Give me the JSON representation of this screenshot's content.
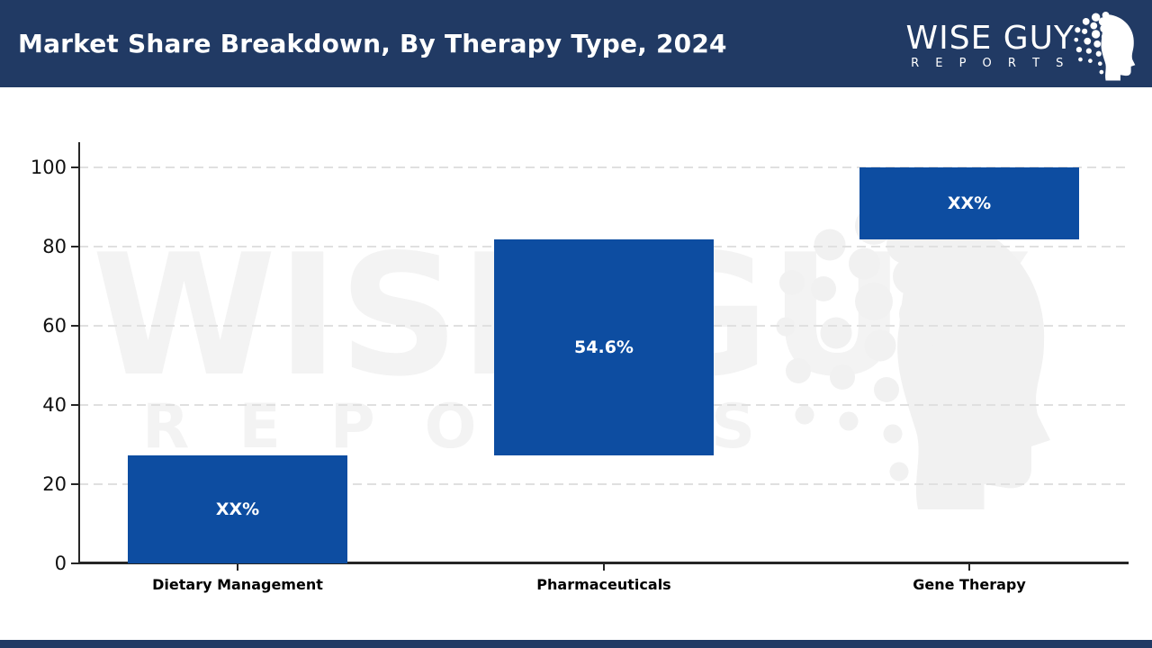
{
  "header": {
    "title": "Market Share Breakdown, By Therapy Type, 2024",
    "logo": {
      "wordmark": "WISE GUY",
      "subtext": "R E P O R T S",
      "icon": "dotted-head-profile-icon"
    }
  },
  "watermark": {
    "wordmark": "WISE GUY",
    "subtext": "REPORTS"
  },
  "chart_data": {
    "type": "bar",
    "subtype": "floating-segment bars (waterfall-style share split, segments sum to 100%)",
    "title": "Market Share Breakdown, By Therapy Type, 2024",
    "categories": [
      "Dietary Management",
      "Pharmaceuticals",
      "Gene Therapy"
    ],
    "segments": [
      {
        "category": "Dietary Management",
        "from": 0,
        "to": 27.3,
        "value_label": "XX%"
      },
      {
        "category": "Pharmaceuticals",
        "from": 27.3,
        "to": 81.9,
        "value_label": "54.6%"
      },
      {
        "category": "Gene Therapy",
        "from": 81.9,
        "to": 100,
        "value_label": "XX%"
      }
    ],
    "xlabel": "",
    "ylabel": "",
    "ylim": [
      0,
      106
    ],
    "yticks": [
      0,
      20,
      40,
      60,
      80,
      100
    ],
    "grid": "horizontal dashed gridlines at each y tick",
    "legend": "none",
    "bar_color": "#0d4da1",
    "bar_label_color": "#ffffff"
  },
  "colors": {
    "header_bg": "#213a64",
    "footer_bg": "#213a64",
    "bar": "#0d4da1",
    "axis": "#262626",
    "gridline": "#e0e0e0",
    "watermark": "#f3f3f3",
    "background": "#ffffff"
  }
}
